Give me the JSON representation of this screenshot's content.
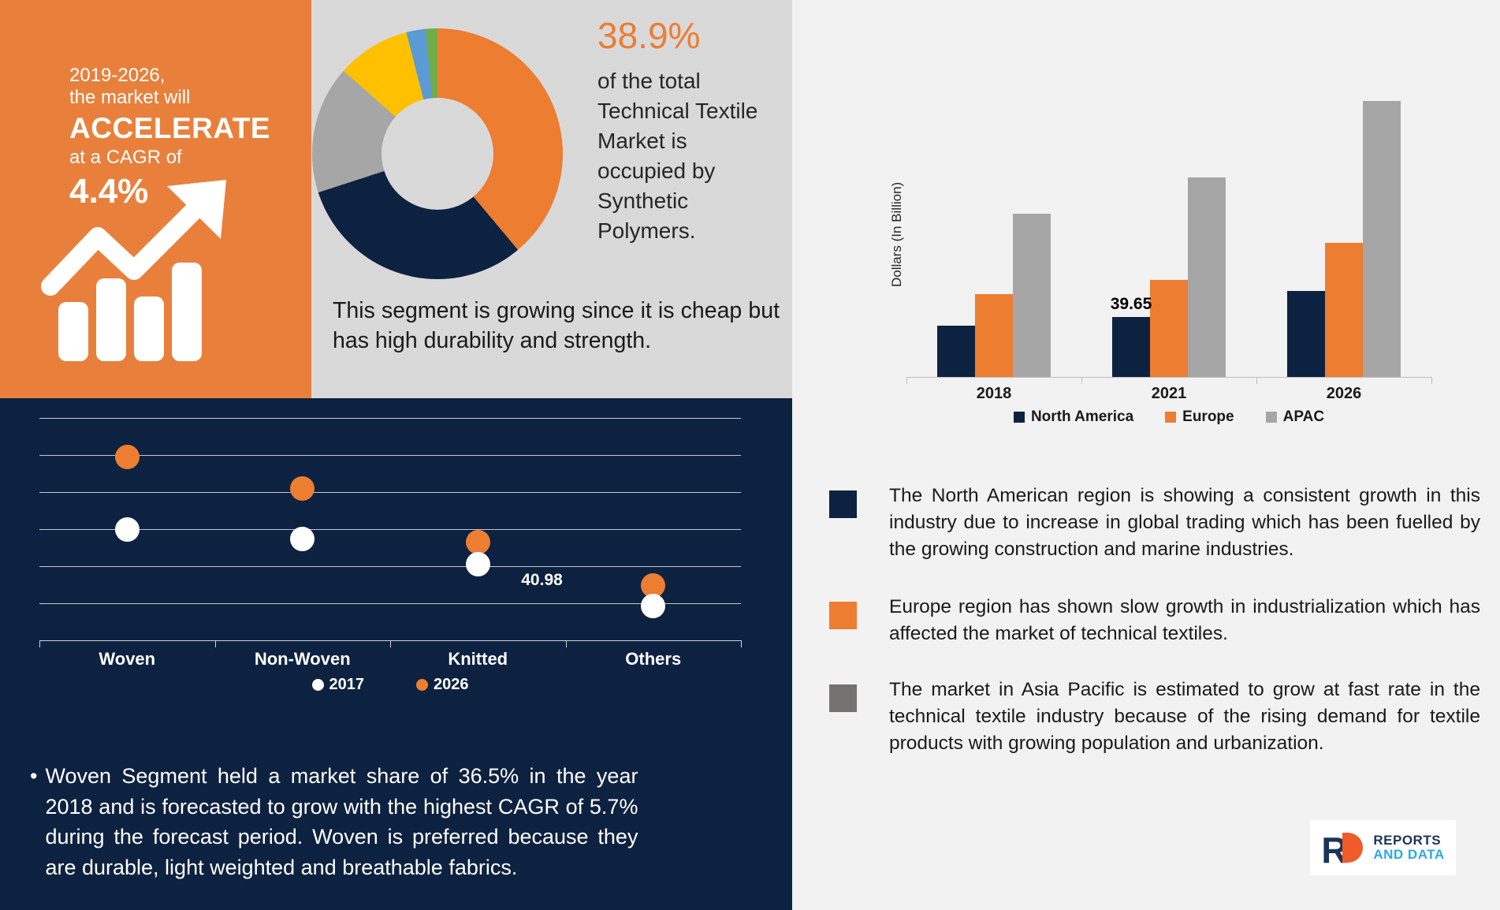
{
  "accelerate_box": {
    "period": "2019-2026,",
    "line2": "the market will",
    "emphasis": "ACCELERATE",
    "line4": "at a CAGR of",
    "cagr": "4.4%"
  },
  "synthetic_panel": {
    "stat": "38.9%",
    "desc_lines": [
      "of the total",
      "Technical Textile",
      "Market is",
      "occupied by",
      "Synthetic",
      "Polymers."
    ],
    "note": "This segment is growing since it is cheap but has high durability and strength."
  },
  "woven_note": {
    "bullet": "•",
    "text": "Woven Segment held a market share of 36.5% in the year 2018 and is forecasted to grow with the highest CAGR of 5.7% during the forecast period. Woven is preferred because they are durable, light weighted and breathable fabrics."
  },
  "region_notes": [
    {
      "color": "#0D2240",
      "text": "The North American region is showing a consistent growth in this industry due to increase in global trading which has been fuelled by the growing construction and marine industries."
    },
    {
      "color": "#ED7D31",
      "text": "Europe region has shown slow growth in industrialization which has affected the market of technical textiles."
    },
    {
      "color": "#757171",
      "text": "The market in Asia Pacific is estimated to grow at fast rate in the technical textile industry because of the rising demand for textile products with growing population and urbanization."
    }
  ],
  "logo": {
    "mark": "R",
    "title": "REPORTS",
    "subtitle": "AND DATA"
  },
  "chart_data": [
    {
      "id": "material-share-donut",
      "type": "pie",
      "labels": [
        "Synthetic Polymers",
        "unlabeled",
        "unlabeled",
        "unlabeled",
        "unlabeled",
        "unlabeled"
      ],
      "values": [
        38.9,
        31.1,
        16.5,
        9.5,
        2.5,
        1.5
      ],
      "colors": [
        "#ED7D31",
        "#0D2240",
        "#A6A6A6",
        "#FFC000",
        "#5B9BD5",
        "#70AD47"
      ],
      "annotation": "38.9% of the total Technical Textile Market is occupied by Synthetic Polymers."
    },
    {
      "id": "regional-market-bars",
      "type": "bar",
      "categories": [
        "2018",
        "2021",
        "2026"
      ],
      "series": [
        {
          "name": "North America",
          "color": "#0D2240",
          "values": [
            34,
            39.65,
            57
          ]
        },
        {
          "name": "Europe",
          "color": "#ED7D31",
          "values": [
            55,
            64,
            89
          ]
        },
        {
          "name": "APAC",
          "color": "#A6A6A6",
          "values": [
            108,
            132,
            183
          ]
        }
      ],
      "ylabel": "Dollars (In Billion)",
      "ylim": [
        0,
        200
      ],
      "grid": false,
      "legend_position": "bottom",
      "data_labels": [
        {
          "series": 0,
          "category": 1,
          "text": "39.65"
        }
      ]
    },
    {
      "id": "segment-dot-plot",
      "type": "scatter",
      "categories": [
        "Woven",
        "Non-Woven",
        "Knitted",
        "Others"
      ],
      "series": [
        {
          "name": "2017",
          "color": "#FFFFFF",
          "values": [
            60,
            54.5,
            40.98,
            18.5
          ]
        },
        {
          "name": "2026",
          "color": "#ED7D31",
          "values": [
            99,
            82,
            53,
            29.5
          ]
        }
      ],
      "ylim": [
        0,
        130
      ],
      "gridline_step": 20,
      "grid": true,
      "legend_position": "bottom",
      "data_labels": [
        {
          "series": 0,
          "category": 2,
          "text": "40.98"
        }
      ]
    }
  ]
}
